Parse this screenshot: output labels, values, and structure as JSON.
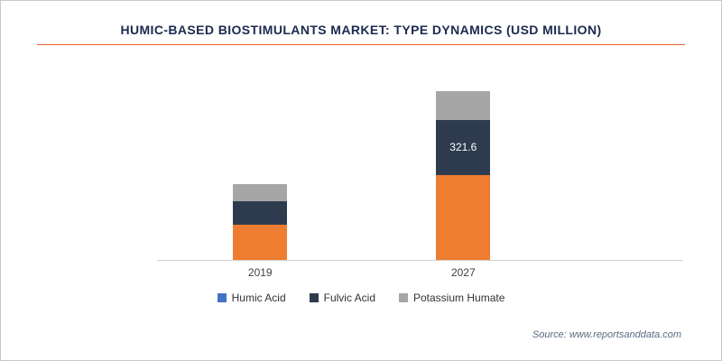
{
  "page": {
    "source": "Source: www.reportsanddata.com",
    "accent_color": "#e8622b",
    "title_color": "#1b2a4e"
  },
  "chart_data": {
    "type": "bar",
    "stacked": true,
    "title": "HUMIC-BASED BIOSTIMULANTS MARKET: TYPE DYNAMICS (USD MILLION)",
    "categories": [
      "2019",
      "2027"
    ],
    "series": [
      {
        "name": "Humic Acid",
        "legend_color": "#4472c4",
        "bar_color": "#ee7d31",
        "values": [
          205,
          495
        ],
        "labels": [
          "",
          ""
        ]
      },
      {
        "name": "Fulvic Acid",
        "legend_color": "#2e3b4e",
        "bar_color": "#2e3b4e",
        "values": [
          135,
          321.6
        ],
        "labels": [
          "",
          "321.6"
        ]
      },
      {
        "name": "Potassium Humate",
        "legend_color": "#a6a6a6",
        "bar_color": "#a6a6a6",
        "values": [
          100,
          170
        ],
        "labels": [
          "",
          ""
        ]
      }
    ],
    "ylim": [
      0,
      1000
    ],
    "xlabel": "",
    "ylabel": "",
    "grid": false,
    "legend_position": "bottom"
  }
}
